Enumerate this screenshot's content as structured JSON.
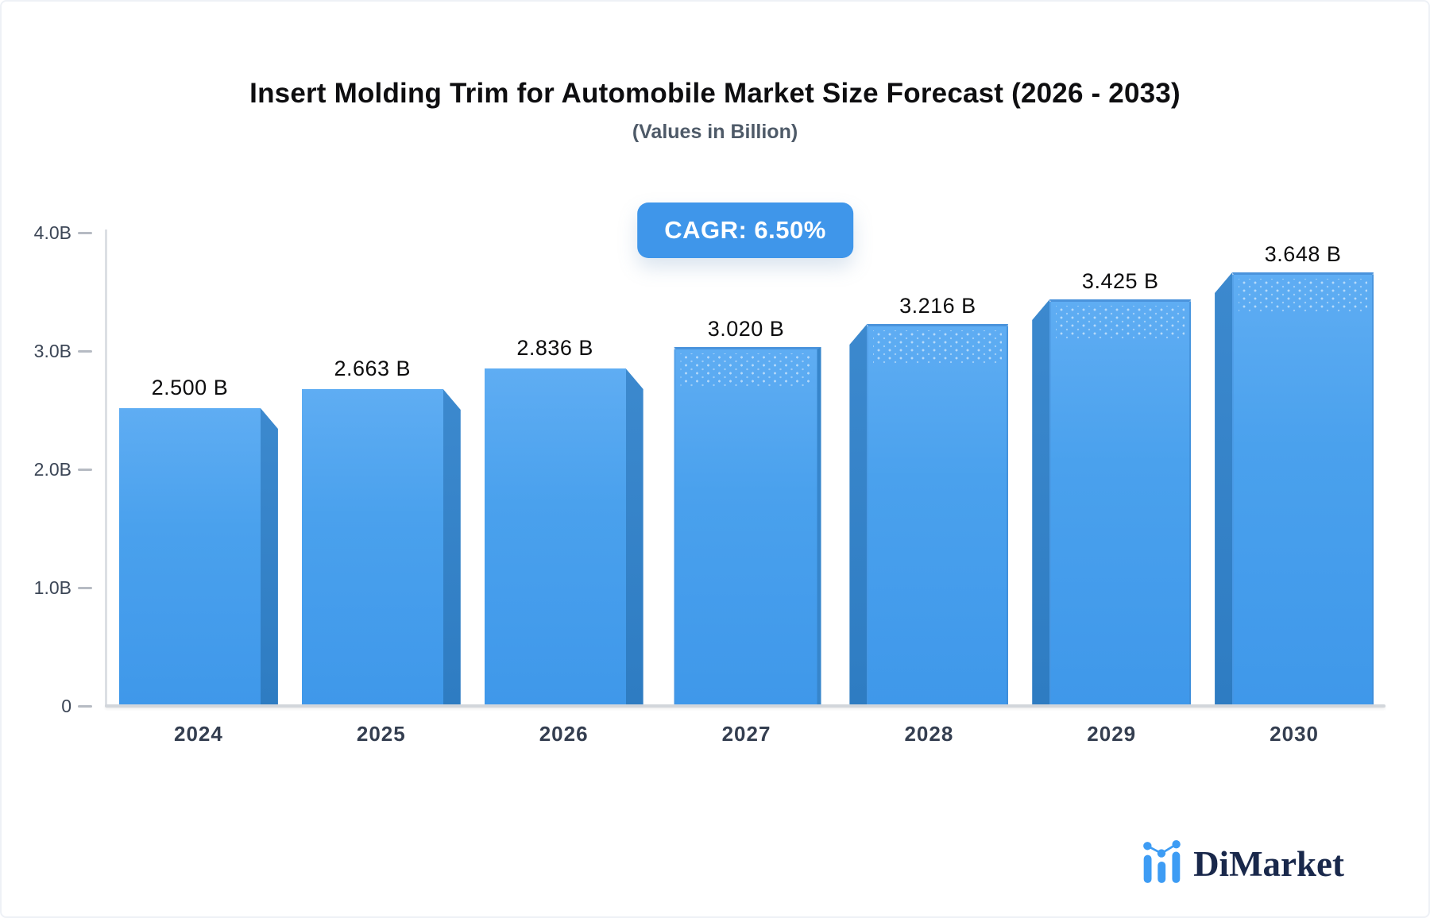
{
  "title": "Insert Molding Trim for Automobile Market Size Forecast (2026 - 2033)",
  "subtitle": "(Values in Billion)",
  "badge": {
    "label": "CAGR: 6.50%",
    "bg_color": "#3F96EA",
    "text_color": "#FFFFFF"
  },
  "chart_data": {
    "type": "bar",
    "categories": [
      "2024",
      "2025",
      "2026",
      "2027",
      "2028",
      "2029",
      "2030"
    ],
    "values": [
      2.5,
      2.663,
      2.836,
      3.02,
      3.216,
      3.425,
      3.648
    ],
    "value_labels": [
      "2.500 B",
      "2.663 B",
      "2.836 B",
      "3.020 B",
      "3.216 B",
      "3.425 B",
      "3.648 B"
    ],
    "title": "Insert Molding Trim for Automobile Market Size Forecast (2026 - 2033)",
    "xlabel": "",
    "ylabel": "",
    "ylim": [
      0,
      4.0
    ],
    "ytick_labels": [
      "4.0B",
      "3.0B",
      "2.0B",
      "1.0B",
      "0"
    ],
    "grid": false,
    "legend": false,
    "bar_color": "#459CEC",
    "bar_side_color": "#2F7DC4",
    "extrude_side": [
      "right",
      "right",
      "right",
      "none",
      "left",
      "left",
      "left"
    ],
    "textured_top": [
      false,
      false,
      false,
      true,
      true,
      true,
      true
    ]
  },
  "logo": {
    "text": "DiMarket",
    "icon": "bar-chart-logo-icon",
    "icon_color": "#3D9CF4",
    "text_color": "#19284B"
  }
}
